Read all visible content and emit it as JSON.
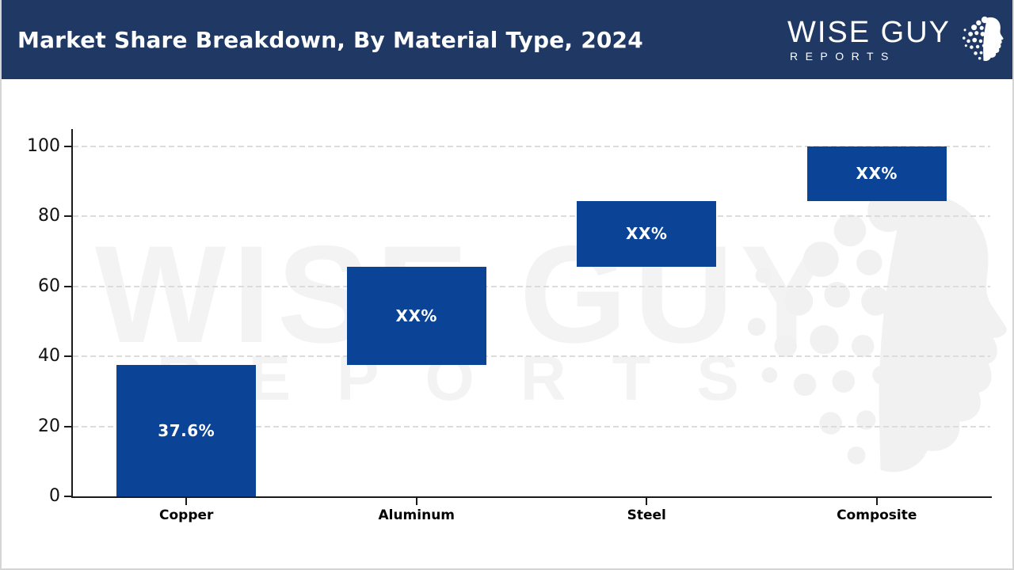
{
  "header": {
    "title": "Market Share Breakdown, By Material Type, 2024",
    "logo": {
      "line1": "WISE GUY",
      "line2": "REPORTS"
    }
  },
  "watermark": {
    "line1": "WISE GUY",
    "line2": "REPORTS"
  },
  "colors": {
    "header_bg": "#1f3864",
    "bar_blue": "#0b4397",
    "gridline": "#dcdcdc",
    "watermark": "#f3f3f3"
  },
  "chart_data": {
    "type": "bar",
    "subtype": "waterfall",
    "title": "Market Share Breakdown, By Material Type, 2024",
    "categories": [
      "Copper",
      "Aluminum",
      "Steel",
      "Composite"
    ],
    "segments": [
      {
        "category": "Copper",
        "label": "37.6%",
        "start": 0,
        "end": 37.6
      },
      {
        "category": "Aluminum",
        "label": "XX%",
        "start": 37.6,
        "end": 65.5
      },
      {
        "category": "Steel",
        "label": "XX%",
        "start": 65.5,
        "end": 84.5
      },
      {
        "category": "Composite",
        "label": "XX%",
        "start": 84.5,
        "end": 100
      }
    ],
    "yticks": [
      0,
      20,
      40,
      60,
      80,
      100
    ],
    "ylim": [
      0,
      105
    ],
    "xlabel": "",
    "ylabel": "",
    "grid": "dashed-horizontal",
    "legend": "none",
    "bar_color": "#0b4397"
  }
}
